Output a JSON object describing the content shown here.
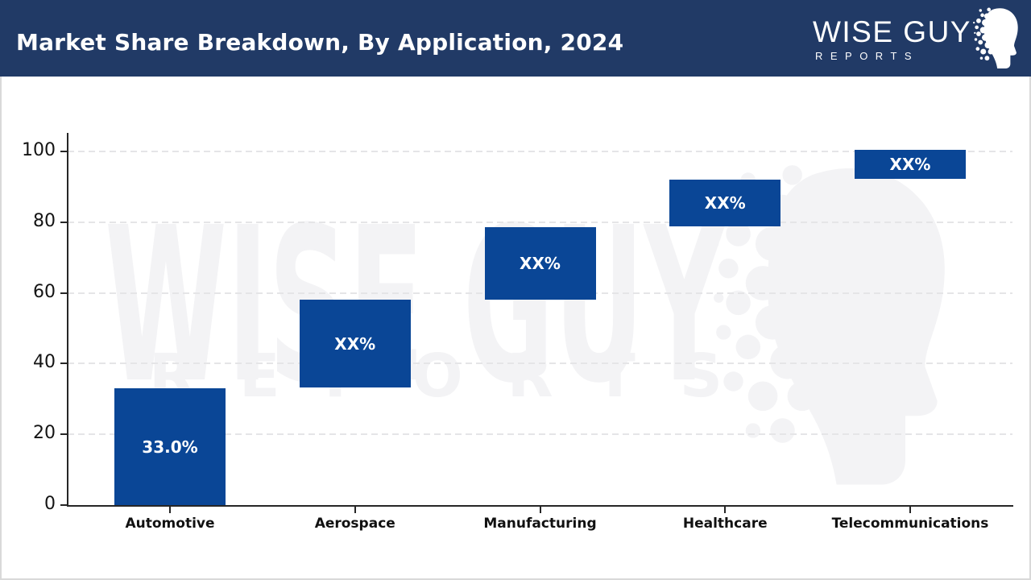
{
  "header": {
    "title": "Market Share Breakdown, By Application, 2024",
    "logo": {
      "line1": "WISE GUY",
      "line2": "REPORTS"
    }
  },
  "watermark": {
    "line1": "WISE GUY",
    "line2": "REPORTS"
  },
  "colors": {
    "header_bg": "#213a66",
    "bar": "#0a4696",
    "axis": "#262626",
    "grid": "#e5e5e7",
    "tick_label": "#141414",
    "bar_label": "#ffffff",
    "watermark": "#f3f3f5"
  },
  "chart_data": {
    "type": "bar",
    "subtype": "waterfall",
    "title": "Market Share Breakdown, By Application, 2024",
    "categories": [
      "Automotive",
      "Aerospace",
      "Manufacturing",
      "Healthcare",
      "Telecommunications"
    ],
    "segments": [
      {
        "category": "Automotive",
        "start": 0,
        "end": 33.0,
        "label": "33.0%"
      },
      {
        "category": "Aerospace",
        "start": 33.2,
        "end": 58.1,
        "label": "XX%"
      },
      {
        "category": "Manufacturing",
        "start": 58.1,
        "end": 78.6,
        "label": "XX%"
      },
      {
        "category": "Healthcare",
        "start": 78.8,
        "end": 92.1,
        "label": "XX%"
      },
      {
        "category": "Telecommunications",
        "start": 92.3,
        "end": 100.4,
        "label": "XX%"
      }
    ],
    "yticks": [
      0,
      20,
      40,
      60,
      80,
      100
    ],
    "ylim": [
      0,
      105
    ],
    "xlabel": "",
    "ylabel": "",
    "grid": "horizontal-dashed",
    "legend": "none",
    "bar_color": "#0a4696"
  }
}
